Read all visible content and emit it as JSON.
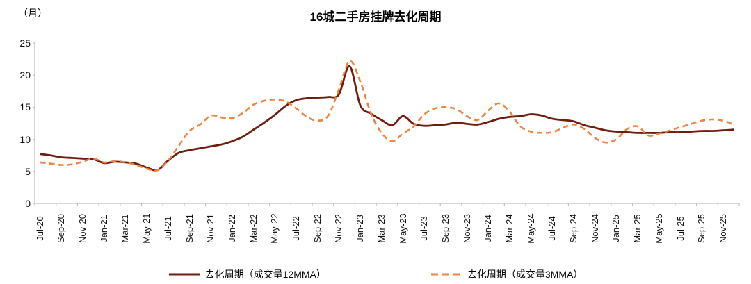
{
  "chart": {
    "title": "16城二手房挂牌去化周期",
    "unit_label": "（月）"
  },
  "chart_data": {
    "type": "line",
    "title": "16城二手房挂牌去化周期",
    "xlabel": "",
    "ylabel": "（月）",
    "ylim": [
      0,
      25
    ],
    "yticks": [
      0,
      5,
      10,
      15,
      20,
      25
    ],
    "grid": false,
    "legend_position": "bottom",
    "x_labeled_every": 2,
    "axis_color": "#c0c0c0",
    "x": [
      "Jul-20",
      "Aug-20",
      "Sep-20",
      "Oct-20",
      "Nov-20",
      "Dec-20",
      "Jan-21",
      "Feb-21",
      "Mar-21",
      "Apr-21",
      "May-21",
      "Jun-21",
      "Jul-21",
      "Aug-21",
      "Sep-21",
      "Oct-21",
      "Nov-21",
      "Dec-21",
      "Jan-22",
      "Feb-22",
      "Mar-22",
      "Apr-22",
      "May-22",
      "Jun-22",
      "Jul-22",
      "Aug-22",
      "Sep-22",
      "Oct-22",
      "Nov-22",
      "Dec-22",
      "Jan-23",
      "Feb-23",
      "Mar-23",
      "Apr-23",
      "May-23",
      "Jun-23",
      "Jul-23",
      "Aug-23",
      "Sep-23",
      "Oct-23",
      "Nov-23",
      "Dec-23",
      "Jan-24",
      "Feb-24",
      "Mar-24",
      "Apr-24",
      "May-24",
      "Jun-24",
      "Jul-24",
      "Aug-24",
      "Sep-24",
      "Oct-24",
      "Nov-24",
      "Dec-24",
      "Jan-25",
      "Feb-25",
      "Mar-25",
      "Apr-25",
      "May-25",
      "Jun-25",
      "Jul-25",
      "Aug-25",
      "Sep-25",
      "Oct-25",
      "Nov-25",
      "Dec-25"
    ],
    "series": [
      {
        "name": "去化周期（成交量12MMA）",
        "style": "solid",
        "color": "#6f1d10",
        "values": [
          7.7,
          7.5,
          7.2,
          7.1,
          7.0,
          6.9,
          6.3,
          6.5,
          6.4,
          6.2,
          5.6,
          5.2,
          6.7,
          7.9,
          8.3,
          8.6,
          8.9,
          9.2,
          9.7,
          10.4,
          11.5,
          12.6,
          13.8,
          15.2,
          16.1,
          16.4,
          16.5,
          16.6,
          17.0,
          21.4,
          15.3,
          14.0,
          13.0,
          12.2,
          13.6,
          12.4,
          12.1,
          12.2,
          12.3,
          12.6,
          12.4,
          12.3,
          12.7,
          13.2,
          13.5,
          13.6,
          13.9,
          13.7,
          13.2,
          13.0,
          12.8,
          12.2,
          11.8,
          11.4,
          11.2,
          11.1,
          11.0,
          11.0,
          11.0,
          11.1,
          11.1,
          11.2,
          11.3,
          11.3,
          11.4,
          11.5
        ]
      },
      {
        "name": "去化周期（成交量3MMA）",
        "style": "dashed",
        "color": "#ef8440",
        "values": [
          6.4,
          6.2,
          6.0,
          6.1,
          6.5,
          7.0,
          6.4,
          6.6,
          6.4,
          6.0,
          5.4,
          5.2,
          6.7,
          9.0,
          11.3,
          12.3,
          13.7,
          13.4,
          13.3,
          14.1,
          15.4,
          16.0,
          16.2,
          15.9,
          14.8,
          13.5,
          12.9,
          13.7,
          17.8,
          22.2,
          19.0,
          14.0,
          11.0,
          9.7,
          10.9,
          12.0,
          13.9,
          14.8,
          15.0,
          14.7,
          13.6,
          13.0,
          14.5,
          15.6,
          14.3,
          12.0,
          11.2,
          11.0,
          11.1,
          11.8,
          12.3,
          11.6,
          10.2,
          9.5,
          10.0,
          11.6,
          12.0,
          10.6,
          10.9,
          11.4,
          11.9,
          12.4,
          12.9,
          13.1,
          12.9,
          12.3
        ]
      }
    ]
  }
}
